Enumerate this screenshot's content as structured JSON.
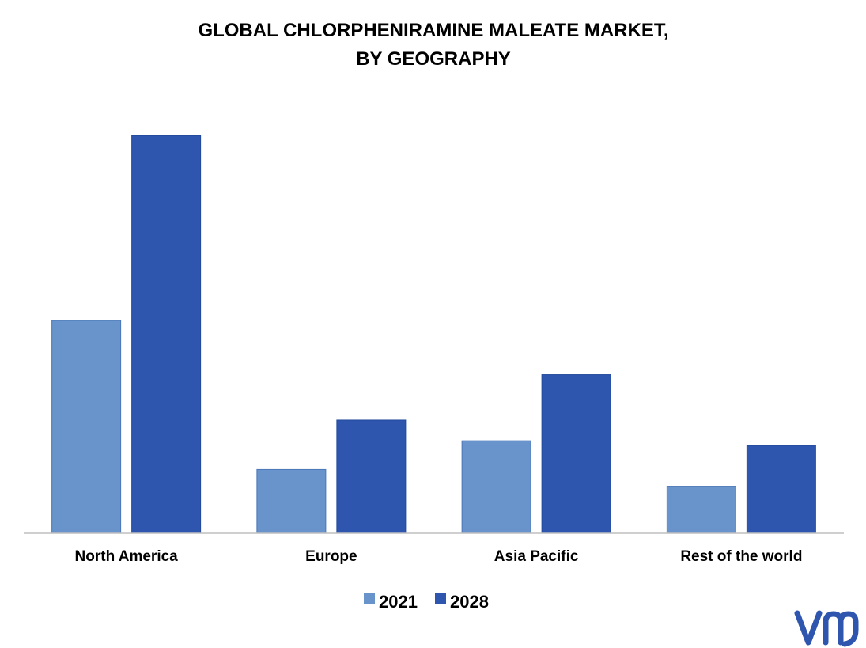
{
  "chart_data": {
    "type": "bar",
    "title": "GLOBAL CHLORPHENIRAMINE  MALEATE MARKET,",
    "subtitle": "BY GEOGRAPHY",
    "categories": [
      "North America",
      "Europe",
      "Asia Pacific",
      "Rest of the world"
    ],
    "series": [
      {
        "name": "2021",
        "values": [
          26.7,
          8.0,
          11.6,
          5.9
        ],
        "color": "#6993CB"
      },
      {
        "name": "2028",
        "values": [
          49.9,
          14.2,
          19.9,
          11.0
        ],
        "color": "#2E56AE"
      }
    ],
    "ylim": [
      0,
      55
    ],
    "grid": false,
    "y_axis_visible": false,
    "legend_position": "bottom-center"
  },
  "branding": {
    "logo_text": "vmr",
    "logo_color": "#2E56AE"
  }
}
